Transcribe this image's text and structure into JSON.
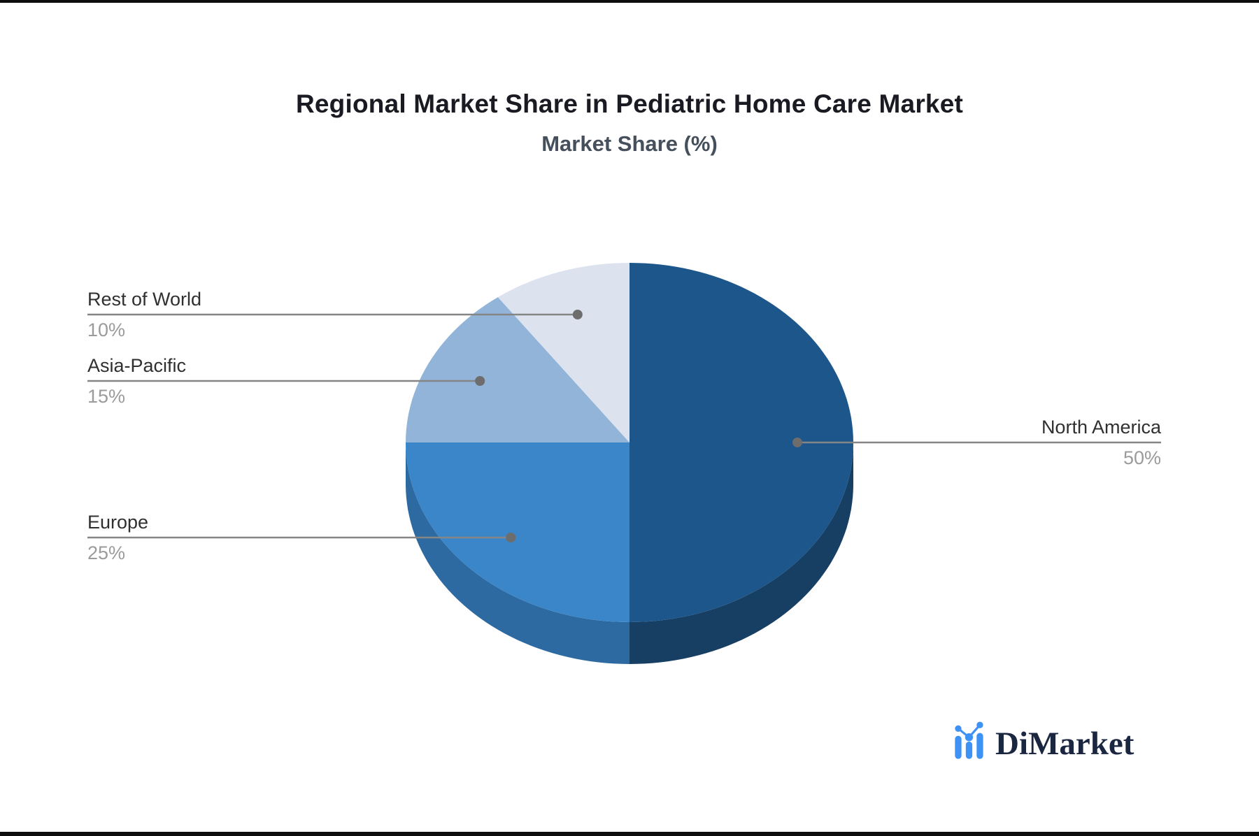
{
  "title": "Regional Market Share in Pediatric Home Care Market",
  "subtitle": "Market Share (%)",
  "chart_data": {
    "type": "pie",
    "style": "3d",
    "title": "Regional Market Share in Pediatric Home Care Market",
    "subtitle": "Market Share (%)",
    "unit": "%",
    "start_angle_deg": 0,
    "direction": "clockwise",
    "legend_position": "callout-leader-lines",
    "slices": [
      {
        "label": "North America",
        "value": 50,
        "percent_label": "50%",
        "color": "#1c568b",
        "side_color": "#173e63",
        "label_side": "right"
      },
      {
        "label": "Europe",
        "value": 25,
        "percent_label": "25%",
        "color": "#3a86c9",
        "side_color": "#2d6aa1",
        "label_side": "left"
      },
      {
        "label": "Asia-Pacific",
        "value": 15,
        "percent_label": "15%",
        "color": "#92b4d9",
        "side_color": "#7293b8",
        "label_side": "left"
      },
      {
        "label": "Rest of World",
        "value": 10,
        "percent_label": "10%",
        "color": "#dce3ee",
        "side_color": "#b9c4d6",
        "label_side": "left"
      }
    ]
  },
  "colors": {
    "background": "#ffffff",
    "title": "#1a1b22",
    "subtitle": "#46505c",
    "label_text": "#303030",
    "percent_text": "#9b9b9b",
    "leader_line": "#858585",
    "leader_dot": "#6d6d6d"
  },
  "branding": {
    "logo_text": "DiMarket",
    "logo_icon": "bar-chart-trend-icon",
    "logo_text_color": "#1b2740",
    "logo_icon_color": "#3f92f5"
  }
}
